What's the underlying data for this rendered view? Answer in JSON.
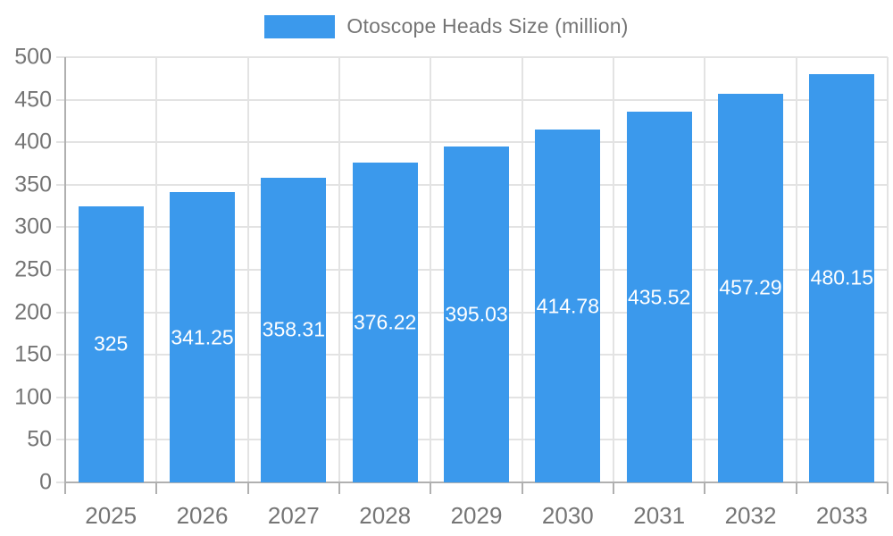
{
  "legend": {
    "label": "Otoscope Heads Size (million)"
  },
  "colors": {
    "bar": "#3b99ec",
    "bar_value_text": "#ffffff",
    "axis_text": "#757575",
    "grid_line": "#e3e3e3",
    "axis_line": "#b0b0b0"
  },
  "chart_data": {
    "type": "bar",
    "title": "Otoscope Heads Size (million)",
    "categories": [
      "2025",
      "2026",
      "2027",
      "2028",
      "2029",
      "2030",
      "2031",
      "2032",
      "2033"
    ],
    "values": [
      325,
      341.25,
      358.31,
      376.22,
      395.03,
      414.78,
      435.52,
      457.29,
      480.15
    ],
    "value_labels": [
      "325",
      "341.25",
      "358.31",
      "376.22",
      "395.03",
      "414.78",
      "435.52",
      "457.29",
      "480.15"
    ],
    "xlabel": "",
    "ylabel": "",
    "ylim": [
      0,
      500
    ],
    "ytick_step": 50,
    "ytick_labels": [
      "0",
      "50",
      "100",
      "150",
      "200",
      "250",
      "300",
      "350",
      "400",
      "450",
      "500"
    ],
    "grid": true,
    "legend_position": "top",
    "value_label_position": "inside-middle"
  }
}
